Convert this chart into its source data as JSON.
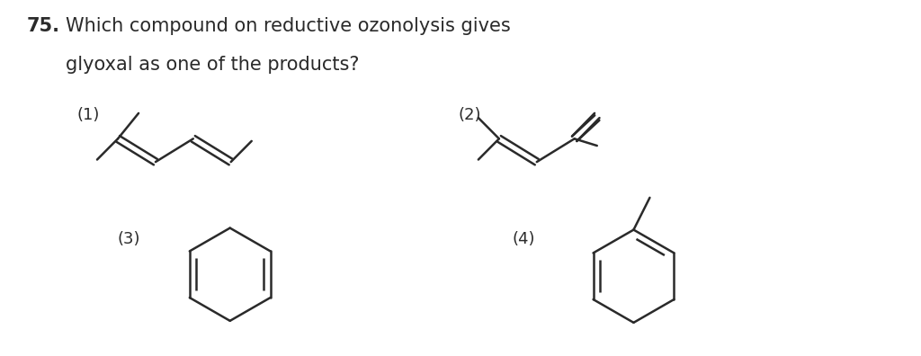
{
  "title_number": "75.",
  "title_text_line1": "Which compound on reductive ozonolysis gives",
  "title_text_line2": "glyoxal as one of the products?",
  "background_color": "#ffffff",
  "line_color": "#2a2a2a",
  "label_color": "#2a2a2a",
  "font_size_title": 15,
  "font_size_label": 13,
  "fig_width": 10.24,
  "fig_height": 3.96,
  "dpi": 100
}
